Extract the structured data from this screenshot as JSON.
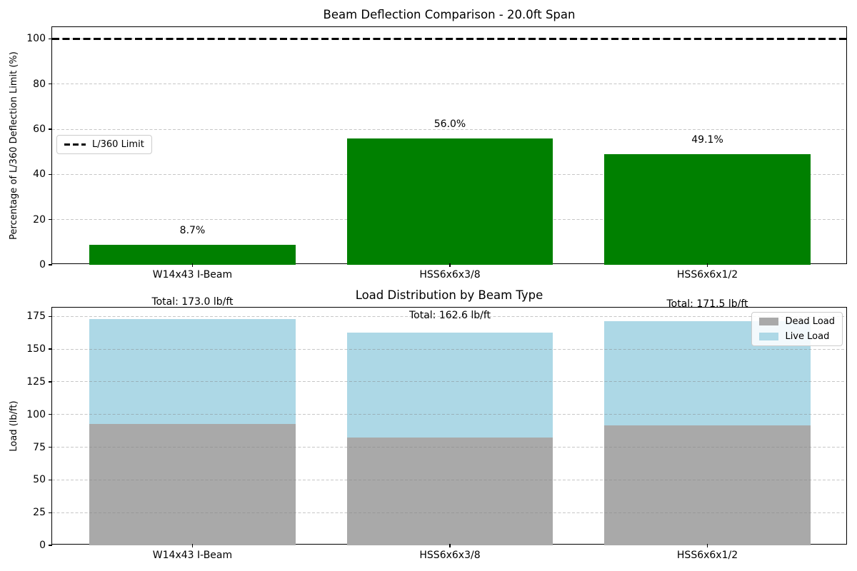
{
  "chart_data": [
    {
      "type": "bar",
      "title": "Beam Deflection Comparison - 20.0ft Span",
      "ylabel": "Percentage of L/360 Deflection Limit (%)",
      "xlabel": "",
      "categories": [
        "W14x43 I-Beam",
        "HSS6x6x3/8",
        "HSS6x6x1/2"
      ],
      "values": [
        8.7,
        56.0,
        49.1
      ],
      "bar_labels": [
        "8.7%",
        "56.0%",
        "49.1%"
      ],
      "bar_color": "#008000",
      "yticks": [
        0,
        20,
        40,
        60,
        80,
        100
      ],
      "ylim": [
        0,
        105.2
      ],
      "grid": true,
      "reference_line": {
        "value": 100,
        "label": "L/360 Limit",
        "color": "#000000",
        "linestyle": "dashed"
      },
      "legend": {
        "position": "center-left",
        "entries": [
          {
            "label": "L/360 Limit",
            "swatch": "dashed-line",
            "color": "#000000"
          }
        ]
      }
    },
    {
      "type": "stacked-bar",
      "title": "Load Distribution by Beam Type",
      "ylabel": "Load (lb/ft)",
      "xlabel": "",
      "categories": [
        "W14x43 I-Beam",
        "HSS6x6x3/8",
        "HSS6x6x1/2"
      ],
      "series": [
        {
          "name": "Dead Load",
          "color": "#a9a9a9",
          "values": [
            93.0,
            82.6,
            91.5
          ]
        },
        {
          "name": "Live Load",
          "color": "#add8e6",
          "values": [
            80.0,
            80.0,
            80.0
          ]
        }
      ],
      "bar_labels": [
        "Total: 173.0 lb/ft",
        "Total: 162.6 lb/ft",
        "Total: 171.5 lb/ft"
      ],
      "yticks": [
        0,
        25,
        50,
        75,
        100,
        125,
        150,
        175
      ],
      "ylim": [
        0,
        181.7
      ],
      "grid": true,
      "legend": {
        "position": "top-right",
        "entries": [
          {
            "label": "Dead Load",
            "swatch": "patch",
            "color": "#a9a9a9"
          },
          {
            "label": "Live Load",
            "swatch": "patch",
            "color": "#add8e6"
          }
        ]
      }
    }
  ]
}
